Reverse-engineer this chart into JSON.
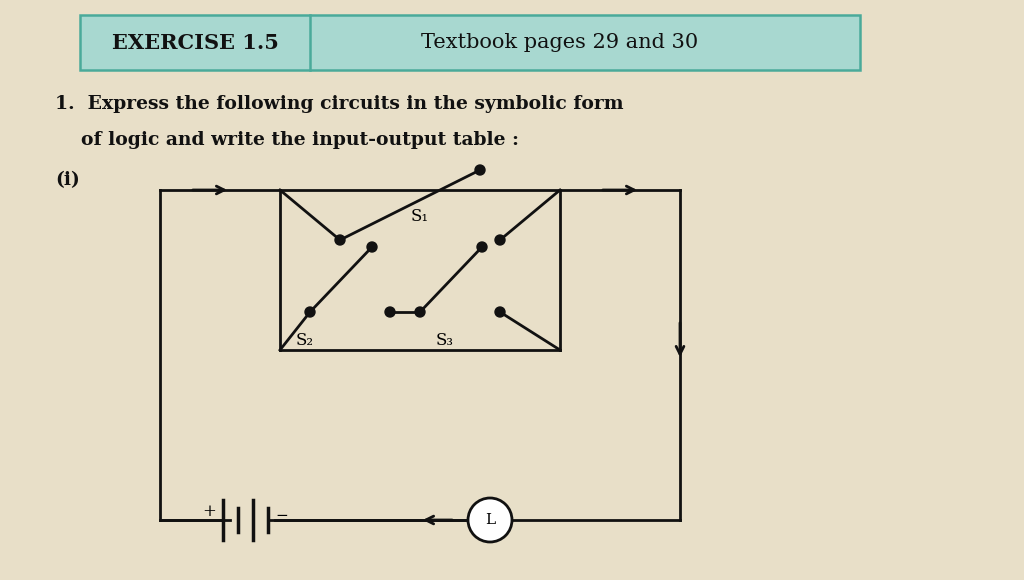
{
  "bg_color": "#e8dfc8",
  "title_box_color": "#a8d8d0",
  "title_box_edge": "#4aaa9a",
  "title_exercise": "EXERCISE 1.5",
  "title_pages": "Textbook pages 29 and 30",
  "question_line1": "1.  Express the following circuits in the symbolic form",
  "question_line2": "    of logic and write the input-output table :",
  "sub_label": "(i)",
  "switch_labels": [
    "S₁",
    "S₂",
    "S₃"
  ],
  "lamp_label": "L",
  "battery_plus": "+",
  "battery_minus": "−",
  "line_color": "#111111",
  "text_color": "#111111"
}
